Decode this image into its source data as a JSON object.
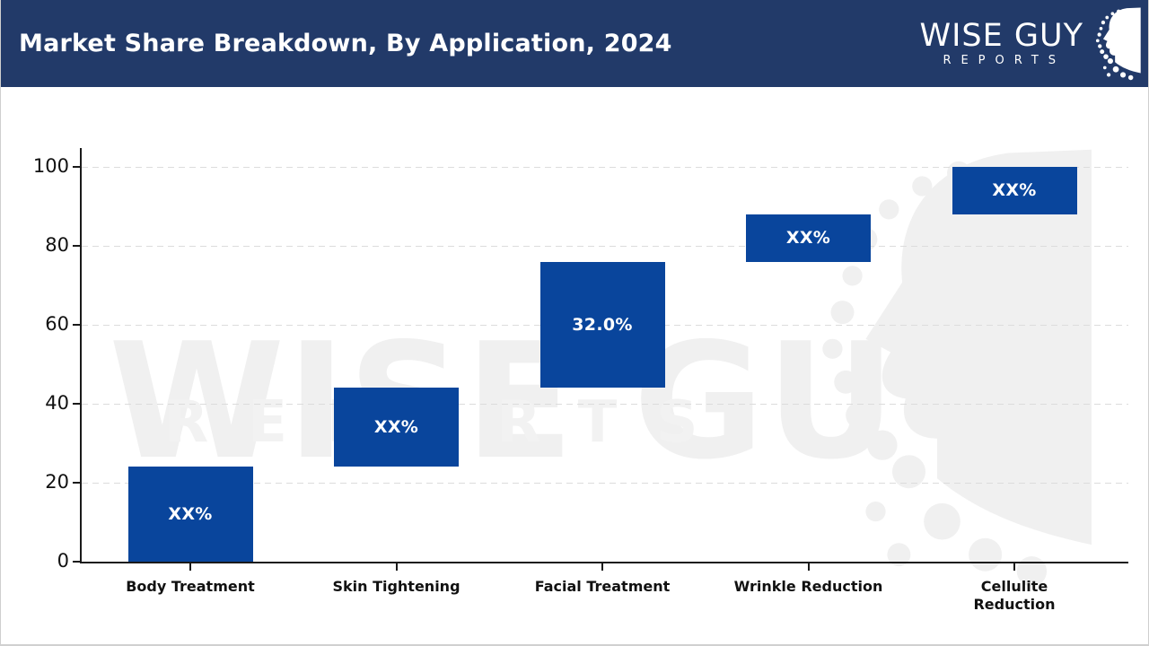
{
  "header": {
    "title": "Market Share Breakdown, By Application, 2024",
    "logo": {
      "line1": "WISE GUY",
      "line2": "REPORTS"
    }
  },
  "watermark": {
    "line1": "WISE GUY",
    "line2": "REPORTS"
  },
  "colors": {
    "header_bg": "#223a69",
    "bar": "#09459c",
    "bar_label": "#ffffff",
    "grid": "#dcdcdc",
    "axis": "#1a1a1a",
    "watermark": "#f0f0f0"
  },
  "chart_data": {
    "type": "bar",
    "variant": "floating-waterfall",
    "title": "Market Share Breakdown, By Application, 2024",
    "categories": [
      "Body Treatment",
      "Skin Tightening",
      "Facial Treatment",
      "Wrinkle Reduction",
      "Cellulite Reduction"
    ],
    "segments": [
      {
        "category": "Body Treatment",
        "tick_label": "Body Treatment",
        "start": 0,
        "end": 24,
        "label": "XX%"
      },
      {
        "category": "Skin Tightening",
        "tick_label": "Skin Tightening",
        "start": 24,
        "end": 44,
        "label": "XX%"
      },
      {
        "category": "Facial Treatment",
        "tick_label": "Facial Treatment",
        "start": 44,
        "end": 76,
        "label": "32.0%"
      },
      {
        "category": "Wrinkle Reduction",
        "tick_label": "Wrinkle Reduction",
        "start": 76,
        "end": 88,
        "label": "XX%"
      },
      {
        "category": "Cellulite Reduction",
        "tick_label": "Cellulite\nReduction",
        "start": 88,
        "end": 100,
        "label": "XX%"
      }
    ],
    "implied_segment_values": [
      24,
      20,
      32,
      12,
      12
    ],
    "xlabel": "",
    "ylabel": "",
    "yticks": [
      0,
      20,
      40,
      60,
      80,
      100
    ],
    "ylim": [
      0,
      105
    ],
    "grid": "horizontal-dashed",
    "legend": "none"
  }
}
